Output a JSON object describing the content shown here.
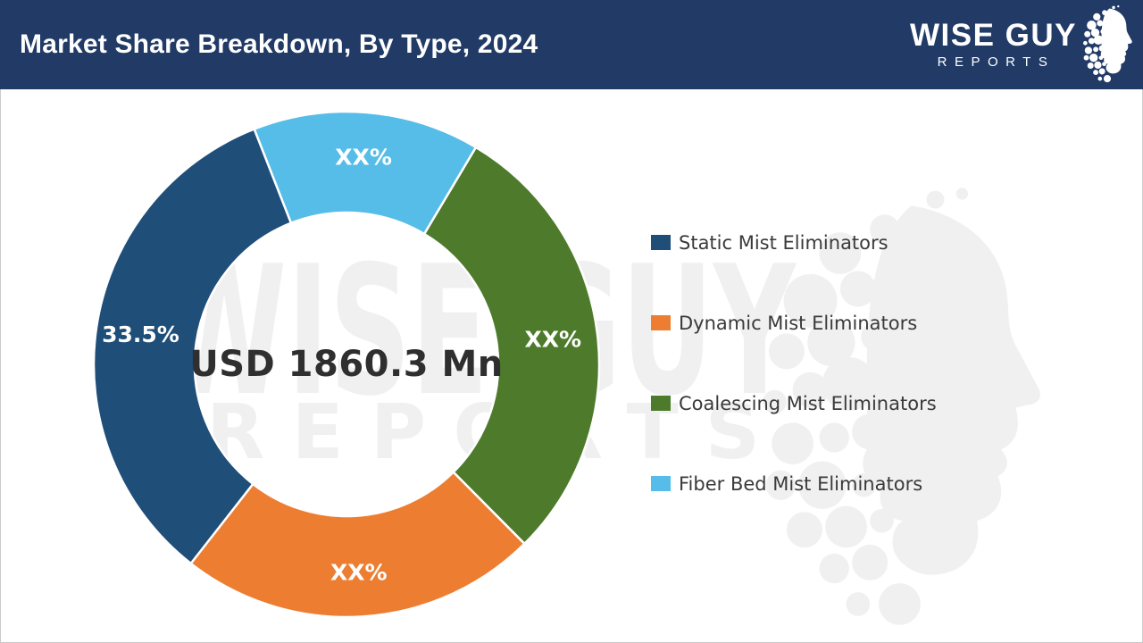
{
  "header": {
    "title": "Market Share Breakdown, By Type, 2024",
    "logo_line1": "WISE GUY",
    "logo_line2": "REPORTS"
  },
  "chart_data": {
    "type": "pie",
    "subtype": "donut",
    "title": "Market Share Breakdown, By Type, 2024",
    "center_label": "USD 1860.3 Mn",
    "legend_position": "right",
    "start_angle_deg": -21.4,
    "direction": "counterclockwise",
    "slices": [
      {
        "label": "Static Mist Eliminators",
        "value_pct": 33.5,
        "display": "33.5%",
        "color": "#1f4e79"
      },
      {
        "label": "Dynamic Mist Eliminators",
        "value_pct": 23.0,
        "display": "XX%",
        "color": "#ed7d31"
      },
      {
        "label": "Coalescing Mist Eliminators",
        "value_pct": 29.0,
        "display": "XX%",
        "color": "#4e7b2b"
      },
      {
        "label": "Fiber Bed Mist Eliminators",
        "value_pct": 14.5,
        "display": "XX%",
        "color": "#56bce8"
      }
    ]
  },
  "watermark": {
    "line1": "WISE GUY",
    "line2": "REPORTS"
  }
}
